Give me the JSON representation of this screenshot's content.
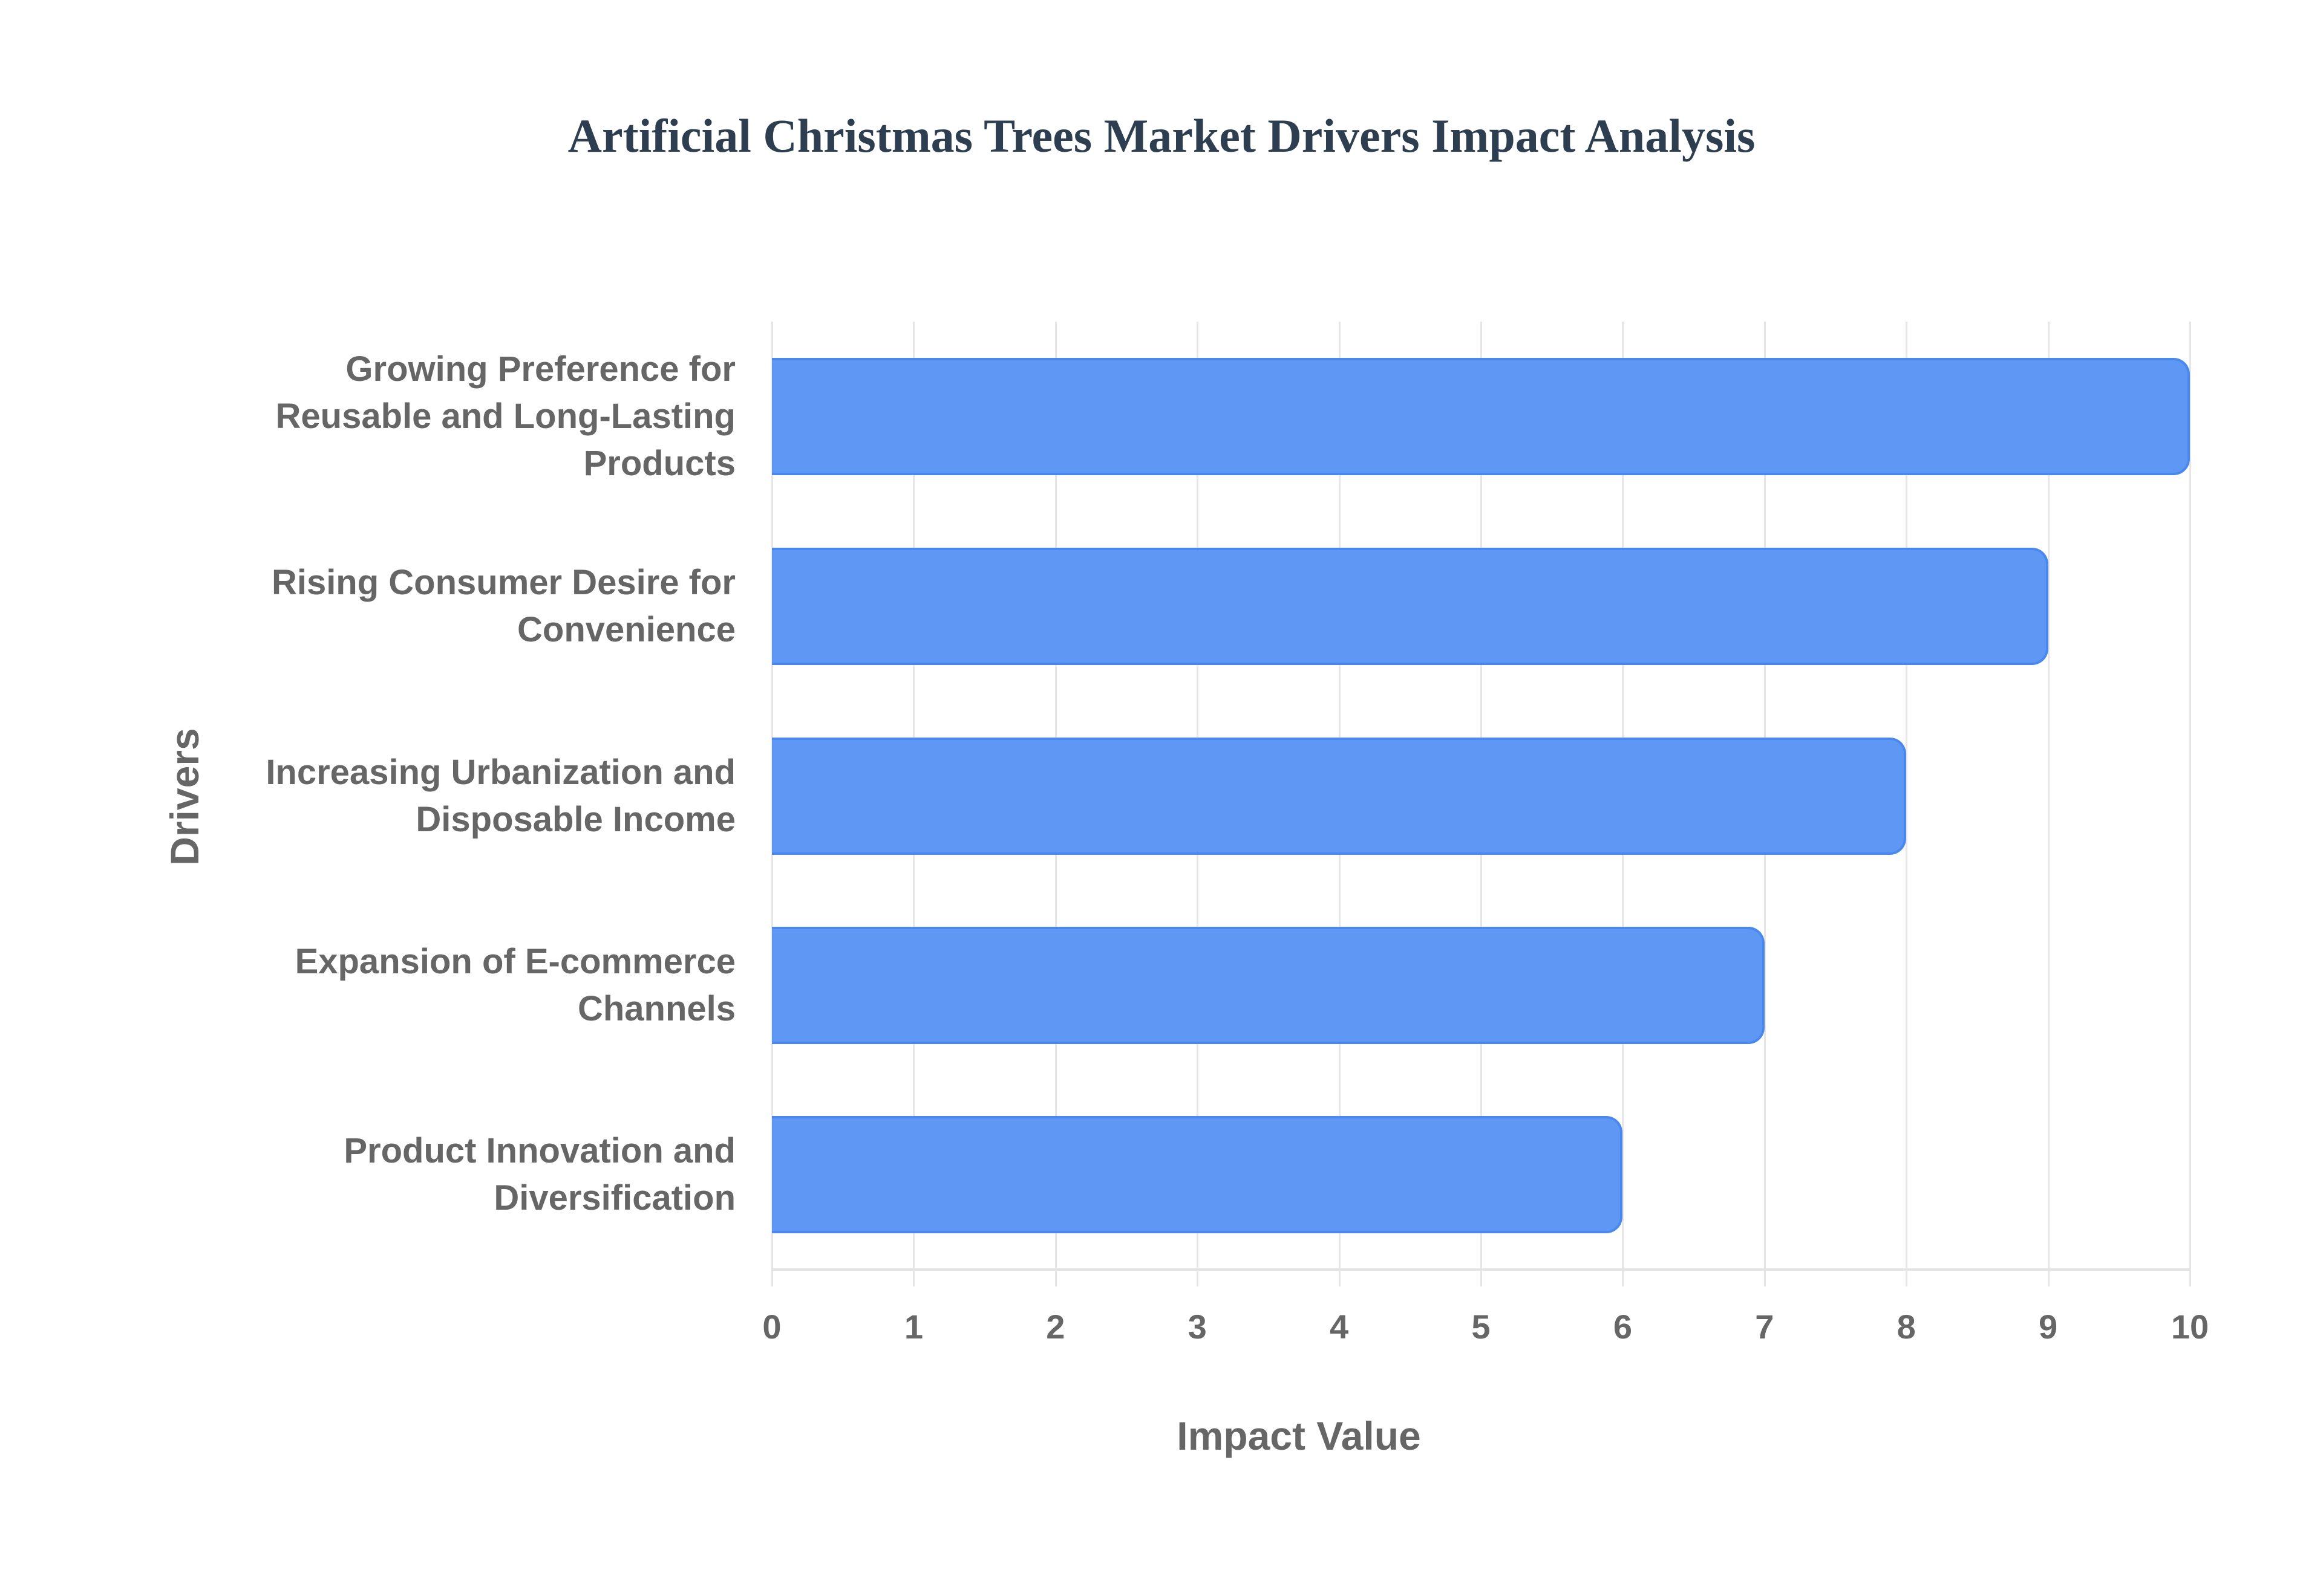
{
  "chart_data": {
    "type": "bar",
    "orientation": "horizontal",
    "title": "Artificial Christmas Trees Market Drivers Impact Analysis",
    "xlabel": "Impact Value",
    "ylabel": "Drivers",
    "categories": [
      "Growing Preference for Reusable and Long-Lasting Products",
      "Rising Consumer Desire for Convenience",
      "Increasing Urbanization and Disposable Income",
      "Expansion of E-commerce Channels",
      "Product Innovation and Diversification"
    ],
    "category_lines": [
      [
        "Growing Preference for",
        "Reusable and Long-Lasting",
        "Products"
      ],
      [
        "Rising Consumer Desire for",
        "Convenience"
      ],
      [
        "Increasing Urbanization and",
        "Disposable Income"
      ],
      [
        "Expansion of E-commerce",
        "Channels"
      ],
      [
        "Product Innovation and",
        "Diversification"
      ]
    ],
    "values": [
      10,
      9,
      8,
      7,
      6
    ],
    "xlim": [
      0,
      10
    ],
    "xticks": [
      "0",
      "1",
      "2",
      "3",
      "4",
      "5",
      "6",
      "7",
      "8",
      "9",
      "10"
    ],
    "grid": true,
    "legend": null,
    "colors": {
      "bar_fill": "#5e98f4",
      "bar_border": "#4a88ee",
      "title": "#2c3e50",
      "axis_text": "#666666",
      "grid": "#e6e6e6"
    }
  }
}
